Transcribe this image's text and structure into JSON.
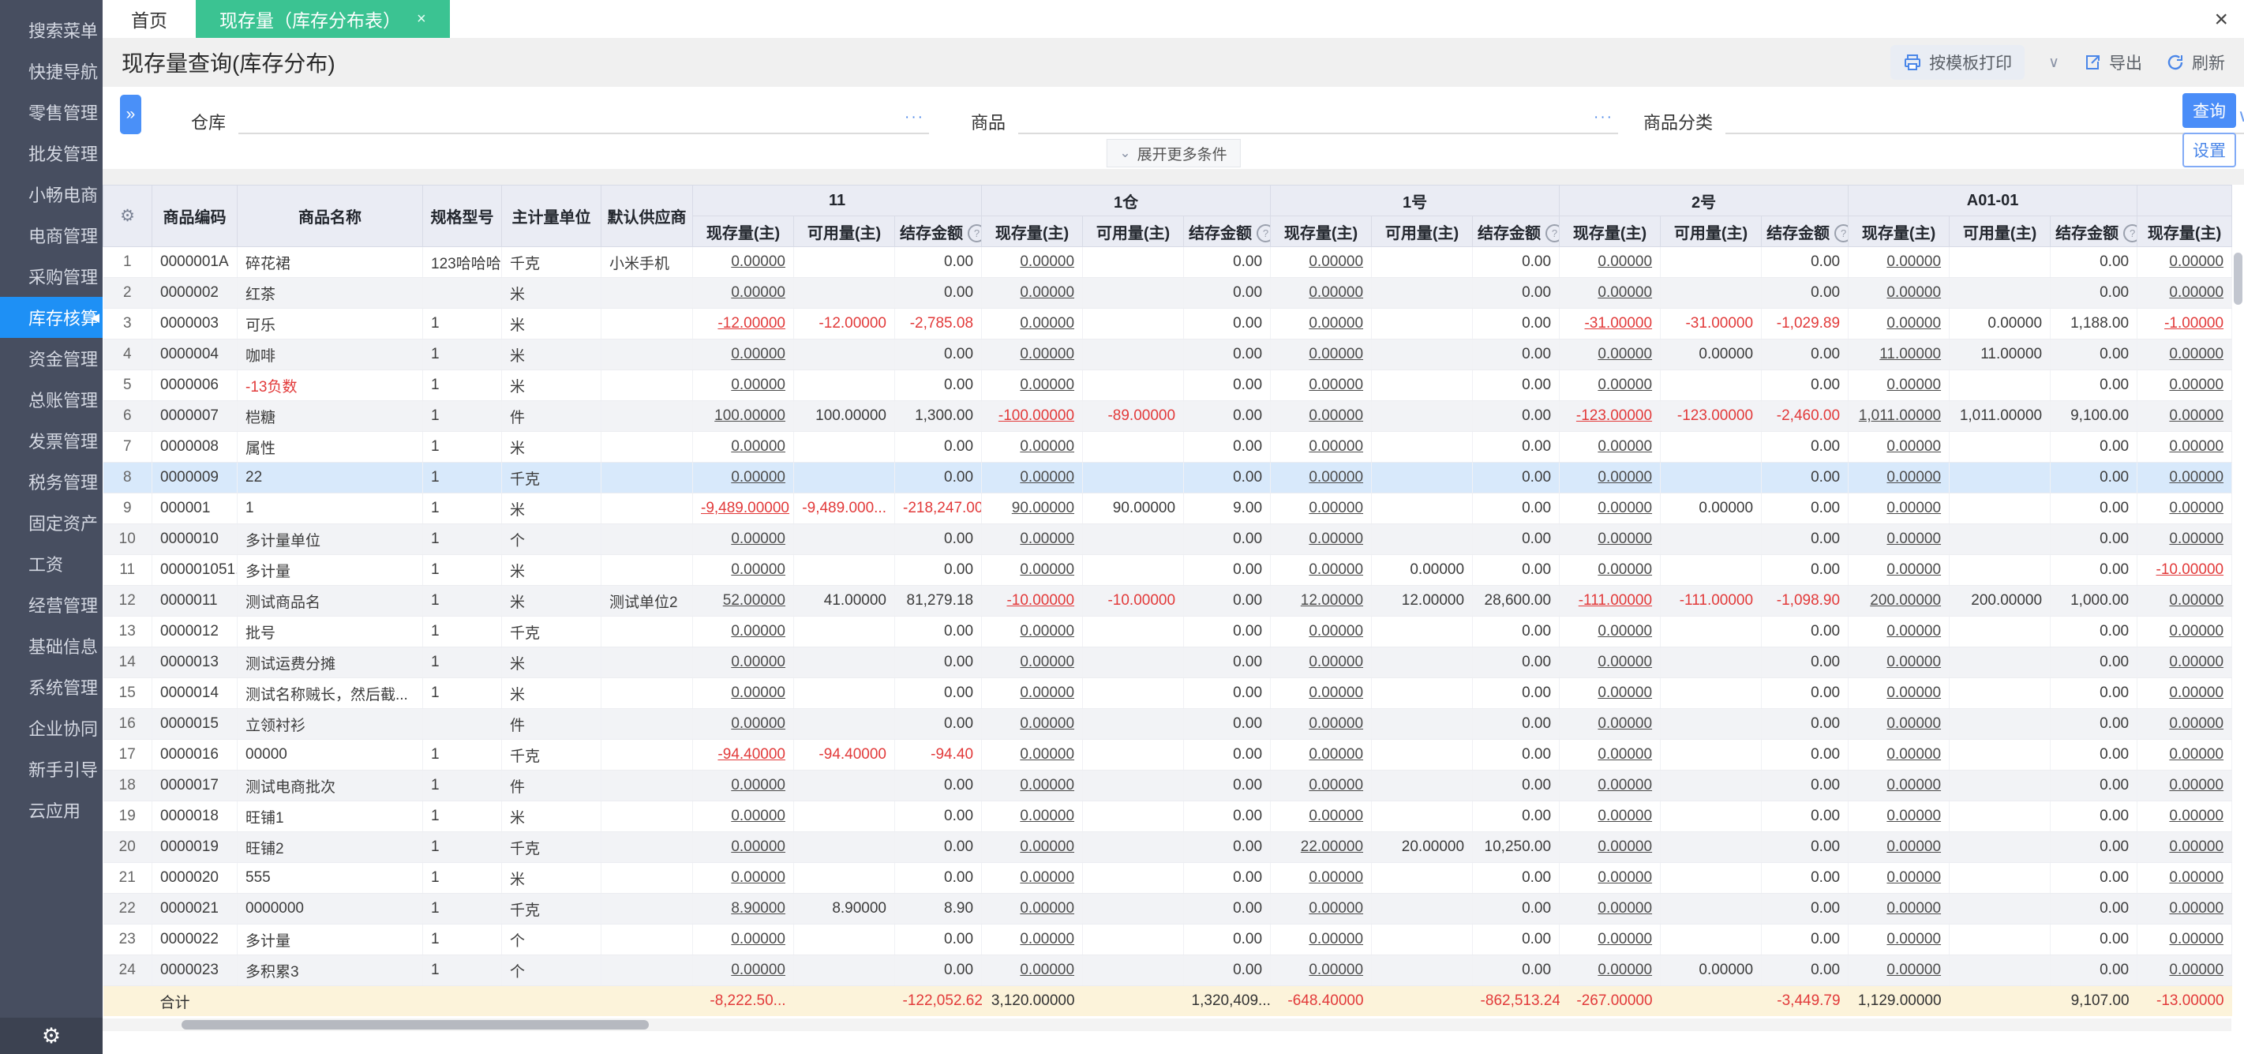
{
  "icons": {
    "caret_down": "▼",
    "active_arrow": "◀",
    "collapse": "»",
    "ellipsis": "···",
    "chevron_down": "∨",
    "expand_chevron": "⌄",
    "close": "×",
    "gear": "⚙",
    "column_settings": "⚙",
    "help": "?"
  },
  "sidebar": {
    "items": [
      {
        "label": "搜索菜单"
      },
      {
        "label": "快捷导航"
      },
      {
        "label": "零售管理",
        "caret": true
      },
      {
        "label": "批发管理",
        "caret": true
      },
      {
        "label": "小畅电商"
      },
      {
        "label": "电商管理"
      },
      {
        "label": "采购管理"
      },
      {
        "label": "库存核算",
        "active": true
      },
      {
        "label": "资金管理"
      },
      {
        "label": "总账管理"
      },
      {
        "label": "发票管理"
      },
      {
        "label": "税务管理"
      },
      {
        "label": "固定资产"
      },
      {
        "label": "工资"
      },
      {
        "label": "经营管理"
      },
      {
        "label": "基础信息"
      },
      {
        "label": "系统管理"
      },
      {
        "label": "企业协同"
      },
      {
        "label": "新手引导"
      },
      {
        "label": "云应用"
      }
    ]
  },
  "tabs": {
    "home": "首页",
    "active": "现存量（库存分布表）"
  },
  "page_title": "现存量查询(库存分布)",
  "toolbar": {
    "print": "按模板打印",
    "export": "导出",
    "refresh": "刷新"
  },
  "filters": {
    "warehouse": "仓库",
    "product": "商品",
    "category": "商品分类",
    "expand_more": "展开更多条件",
    "query": "查询",
    "settings": "设置"
  },
  "table": {
    "info_headers": [
      "商品编码",
      "商品名称",
      "规格型号",
      "主计量单位",
      "默认供应商"
    ],
    "groups": [
      "11",
      "1仓",
      "1号",
      "2号",
      "A01-01"
    ],
    "sub_headers": [
      "现存量(主)",
      "可用量(主)",
      "结存金额"
    ],
    "last_col_header": "现存量(主)",
    "rows": [
      {
        "no": 1,
        "code": "0000001A",
        "name": "碎花裙",
        "spec": "123哈哈哈...",
        "unit": "千克",
        "supplier": "小米手机",
        "values": [
          "0.00000",
          "",
          "0.00",
          "0.00000",
          "",
          "0.00",
          "0.00000",
          "",
          "0.00",
          "0.00000",
          "",
          "0.00",
          "0.00000",
          "",
          "0.00",
          "0.00000"
        ]
      },
      {
        "no": 2,
        "code": "0000002",
        "name": "红茶",
        "spec": "",
        "unit": "米",
        "supplier": "",
        "values": [
          "0.00000",
          "",
          "0.00",
          "0.00000",
          "",
          "0.00",
          "0.00000",
          "",
          "0.00",
          "0.00000",
          "",
          "0.00",
          "0.00000",
          "",
          "0.00",
          "0.00000"
        ]
      },
      {
        "no": 3,
        "code": "0000003",
        "name": "可乐",
        "spec": "1",
        "unit": "米",
        "supplier": "",
        "values": [
          "-12.00000",
          "-12.00000",
          "-2,785.08",
          "0.00000",
          "",
          "0.00",
          "0.00000",
          "",
          "0.00",
          "-31.00000",
          "-31.00000",
          "-1,029.89",
          "0.00000",
          "0.00000",
          "1,188.00",
          "-1.00000"
        ]
      },
      {
        "no": 4,
        "code": "0000004",
        "name": "咖啡",
        "spec": "1",
        "unit": "米",
        "supplier": "",
        "values": [
          "0.00000",
          "",
          "0.00",
          "0.00000",
          "",
          "0.00",
          "0.00000",
          "",
          "0.00",
          "0.00000",
          "0.00000",
          "0.00",
          "11.00000",
          "11.00000",
          "0.00",
          "0.00000"
        ]
      },
      {
        "no": 5,
        "code": "0000006",
        "name": "-13负数",
        "name_red": true,
        "spec": "1",
        "unit": "米",
        "supplier": "",
        "values": [
          "0.00000",
          "",
          "0.00",
          "0.00000",
          "",
          "0.00",
          "0.00000",
          "",
          "0.00",
          "0.00000",
          "",
          "0.00",
          "0.00000",
          "",
          "0.00",
          "0.00000"
        ]
      },
      {
        "no": 6,
        "code": "0000007",
        "name": "桤糖",
        "spec": "1",
        "unit": "件",
        "supplier": "",
        "values": [
          "100.00000",
          "100.00000",
          "1,300.00",
          "-100.00000",
          "-89.00000",
          "0.00",
          "0.00000",
          "",
          "0.00",
          "-123.00000",
          "-123.00000",
          "-2,460.00",
          "1,011.00000",
          "1,011.00000",
          "9,100.00",
          "0.00000"
        ]
      },
      {
        "no": 7,
        "code": "0000008",
        "name": "属性",
        "spec": "1",
        "unit": "米",
        "supplier": "",
        "values": [
          "0.00000",
          "",
          "0.00",
          "0.00000",
          "",
          "0.00",
          "0.00000",
          "",
          "0.00",
          "0.00000",
          "",
          "0.00",
          "0.00000",
          "",
          "0.00",
          "0.00000"
        ]
      },
      {
        "no": 8,
        "code": "0000009",
        "name": "22",
        "spec": "1",
        "unit": "千克",
        "supplier": "",
        "selected": true,
        "values": [
          "0.00000",
          "",
          "0.00",
          "0.00000",
          "",
          "0.00",
          "0.00000",
          "",
          "0.00",
          "0.00000",
          "",
          "0.00",
          "0.00000",
          "",
          "0.00",
          "0.00000"
        ]
      },
      {
        "no": 9,
        "code": "000001",
        "name": "1",
        "spec": "1",
        "unit": "米",
        "supplier": "",
        "values": [
          "-9,489.00000",
          "-9,489.000...",
          "-218,247.00",
          "90.00000",
          "90.00000",
          "9.00",
          "0.00000",
          "",
          "0.00",
          "0.00000",
          "0.00000",
          "0.00",
          "0.00000",
          "",
          "0.00",
          "0.00000"
        ]
      },
      {
        "no": 10,
        "code": "0000010",
        "name": "多计量单位",
        "spec": "1",
        "unit": "个",
        "supplier": "",
        "values": [
          "0.00000",
          "",
          "0.00",
          "0.00000",
          "",
          "0.00",
          "0.00000",
          "",
          "0.00",
          "0.00000",
          "",
          "0.00",
          "0.00000",
          "",
          "0.00",
          "0.00000"
        ]
      },
      {
        "no": 11,
        "code": "000001051...",
        "name": "多计量",
        "spec": "1",
        "unit": "米",
        "supplier": "",
        "values": [
          "0.00000",
          "",
          "0.00",
          "0.00000",
          "",
          "0.00",
          "0.00000",
          "0.00000",
          "0.00",
          "0.00000",
          "",
          "0.00",
          "0.00000",
          "",
          "0.00",
          "-10.00000"
        ]
      },
      {
        "no": 12,
        "code": "0000011",
        "name": "测试商品名",
        "spec": "1",
        "unit": "米",
        "supplier": "测试单位2",
        "values": [
          "52.00000",
          "41.00000",
          "81,279.18",
          "-10.00000",
          "-10.00000",
          "0.00",
          "12.00000",
          "12.00000",
          "28,600.00",
          "-111.00000",
          "-111.00000",
          "-1,098.90",
          "200.00000",
          "200.00000",
          "1,000.00",
          "0.00000"
        ]
      },
      {
        "no": 13,
        "code": "0000012",
        "name": "批号",
        "spec": "1",
        "unit": "千克",
        "supplier": "",
        "values": [
          "0.00000",
          "",
          "0.00",
          "0.00000",
          "",
          "0.00",
          "0.00000",
          "",
          "0.00",
          "0.00000",
          "",
          "0.00",
          "0.00000",
          "",
          "0.00",
          "0.00000"
        ]
      },
      {
        "no": 14,
        "code": "0000013",
        "name": "测试运费分摊",
        "spec": "1",
        "unit": "米",
        "supplier": "",
        "values": [
          "0.00000",
          "",
          "0.00",
          "0.00000",
          "",
          "0.00",
          "0.00000",
          "",
          "0.00",
          "0.00000",
          "",
          "0.00",
          "0.00000",
          "",
          "0.00",
          "0.00000"
        ]
      },
      {
        "no": 15,
        "code": "0000014",
        "name": "测试名称贼长，然后截...",
        "spec": "1",
        "unit": "米",
        "supplier": "",
        "values": [
          "0.00000",
          "",
          "0.00",
          "0.00000",
          "",
          "0.00",
          "0.00000",
          "",
          "0.00",
          "0.00000",
          "",
          "0.00",
          "0.00000",
          "",
          "0.00",
          "0.00000"
        ]
      },
      {
        "no": 16,
        "code": "0000015",
        "name": "立领衬衫",
        "spec": "",
        "unit": "件",
        "supplier": "",
        "values": [
          "0.00000",
          "",
          "0.00",
          "0.00000",
          "",
          "0.00",
          "0.00000",
          "",
          "0.00",
          "0.00000",
          "",
          "0.00",
          "0.00000",
          "",
          "0.00",
          "0.00000"
        ]
      },
      {
        "no": 17,
        "code": "0000016",
        "name": "00000",
        "spec": "1",
        "unit": "千克",
        "supplier": "",
        "values": [
          "-94.40000",
          "-94.40000",
          "-94.40",
          "0.00000",
          "",
          "0.00",
          "0.00000",
          "",
          "0.00",
          "0.00000",
          "",
          "0.00",
          "0.00000",
          "",
          "0.00",
          "0.00000"
        ]
      },
      {
        "no": 18,
        "code": "0000017",
        "name": "测试电商批次",
        "spec": "1",
        "unit": "件",
        "supplier": "",
        "values": [
          "0.00000",
          "",
          "0.00",
          "0.00000",
          "",
          "0.00",
          "0.00000",
          "",
          "0.00",
          "0.00000",
          "",
          "0.00",
          "0.00000",
          "",
          "0.00",
          "0.00000"
        ]
      },
      {
        "no": 19,
        "code": "0000018",
        "name": "旺铺1",
        "spec": "1",
        "unit": "米",
        "supplier": "",
        "values": [
          "0.00000",
          "",
          "0.00",
          "0.00000",
          "",
          "0.00",
          "0.00000",
          "",
          "0.00",
          "0.00000",
          "",
          "0.00",
          "0.00000",
          "",
          "0.00",
          "0.00000"
        ]
      },
      {
        "no": 20,
        "code": "0000019",
        "name": "旺铺2",
        "spec": "1",
        "unit": "千克",
        "supplier": "",
        "values": [
          "0.00000",
          "",
          "0.00",
          "0.00000",
          "",
          "0.00",
          "22.00000",
          "20.00000",
          "10,250.00",
          "0.00000",
          "",
          "0.00",
          "0.00000",
          "",
          "0.00",
          "0.00000"
        ]
      },
      {
        "no": 21,
        "code": "0000020",
        "name": "555",
        "spec": "1",
        "unit": "米",
        "supplier": "",
        "values": [
          "0.00000",
          "",
          "0.00",
          "0.00000",
          "",
          "0.00",
          "0.00000",
          "",
          "0.00",
          "0.00000",
          "",
          "0.00",
          "0.00000",
          "",
          "0.00",
          "0.00000"
        ]
      },
      {
        "no": 22,
        "code": "0000021",
        "name": "0000000",
        "spec": "1",
        "unit": "千克",
        "supplier": "",
        "values": [
          "8.90000",
          "8.90000",
          "8.90",
          "0.00000",
          "",
          "0.00",
          "0.00000",
          "",
          "0.00",
          "0.00000",
          "",
          "0.00",
          "0.00000",
          "",
          "0.00",
          "0.00000"
        ]
      },
      {
        "no": 23,
        "code": "0000022",
        "name": "多计量",
        "spec": "1",
        "unit": "个",
        "supplier": "",
        "values": [
          "0.00000",
          "",
          "0.00",
          "0.00000",
          "",
          "0.00",
          "0.00000",
          "",
          "0.00",
          "0.00000",
          "",
          "0.00",
          "0.00000",
          "",
          "0.00",
          "0.00000"
        ]
      },
      {
        "no": 24,
        "code": "0000023",
        "name": "多积累3",
        "spec": "1",
        "unit": "个",
        "supplier": "",
        "values": [
          "0.00000",
          "",
          "0.00",
          "0.00000",
          "",
          "0.00",
          "0.00000",
          "",
          "0.00",
          "0.00000",
          "0.00000",
          "0.00",
          "0.00000",
          "",
          "0.00",
          "0.00000"
        ]
      }
    ],
    "total": {
      "label": "合计",
      "values": [
        "-8,222.50...",
        "",
        "-122,052.62",
        "3,120.00000",
        "",
        "1,320,409...",
        "-648.40000",
        "",
        "-862,513.24",
        "-267.00000",
        "",
        "-3,449.79",
        "1,129.00000",
        "",
        "9,107.00",
        "-13.00000"
      ]
    }
  }
}
